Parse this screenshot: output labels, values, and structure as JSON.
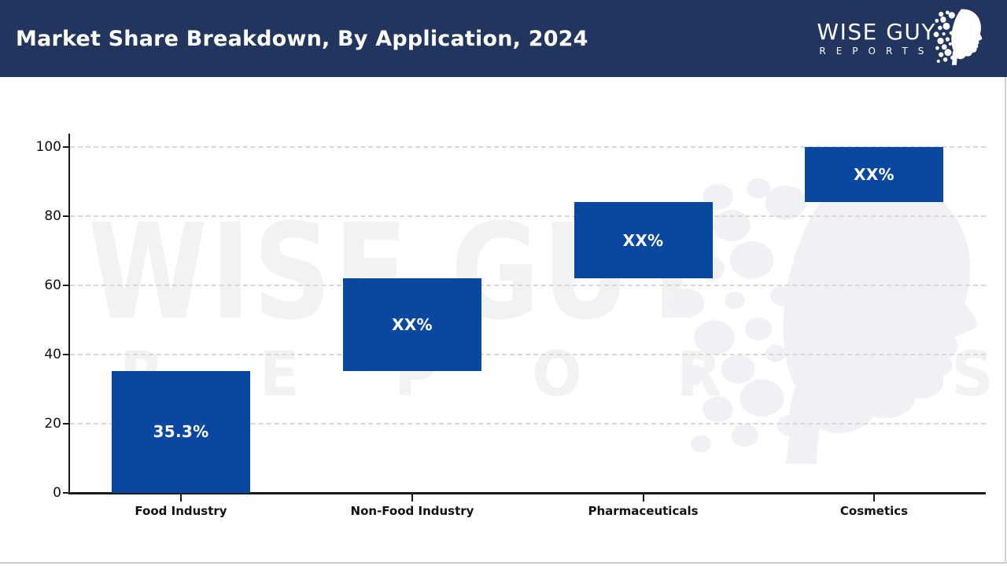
{
  "header": {
    "title": "Market Share Breakdown, By Application, 2024",
    "background_color": "#21355F",
    "logo": {
      "line1": "WISE GUY",
      "line2": "REPORTS"
    }
  },
  "watermark": {
    "line1": "WISE GUY",
    "line2": "R E P O R T S"
  },
  "chart_data": {
    "type": "bar",
    "subtype": "waterfall",
    "title": "Market Share Breakdown, By Application, 2024",
    "categories": [
      "Food Industry",
      "Non-Food Industry",
      "Pharmaceuticals",
      "Cosmetics"
    ],
    "segments": [
      {
        "category": "Food Industry",
        "start": 0,
        "end": 35.3,
        "label": "35.3%"
      },
      {
        "category": "Non-Food Industry",
        "start": 35.3,
        "end": 62,
        "label": "XX%"
      },
      {
        "category": "Pharmaceuticals",
        "start": 62,
        "end": 84,
        "label": "XX%"
      },
      {
        "category": "Cosmetics",
        "start": 84,
        "end": 100,
        "label": "XX%"
      }
    ],
    "y_ticks": [
      0,
      20,
      40,
      60,
      80,
      100
    ],
    "ylim": [
      0,
      105
    ],
    "xlabel": "",
    "ylabel": "",
    "grid": "horizontal-dashed",
    "legend": "none",
    "bar_color": "#0A47A0",
    "bar_label_color": "#FFFFFF",
    "axis_color": "#1a1a1a"
  }
}
